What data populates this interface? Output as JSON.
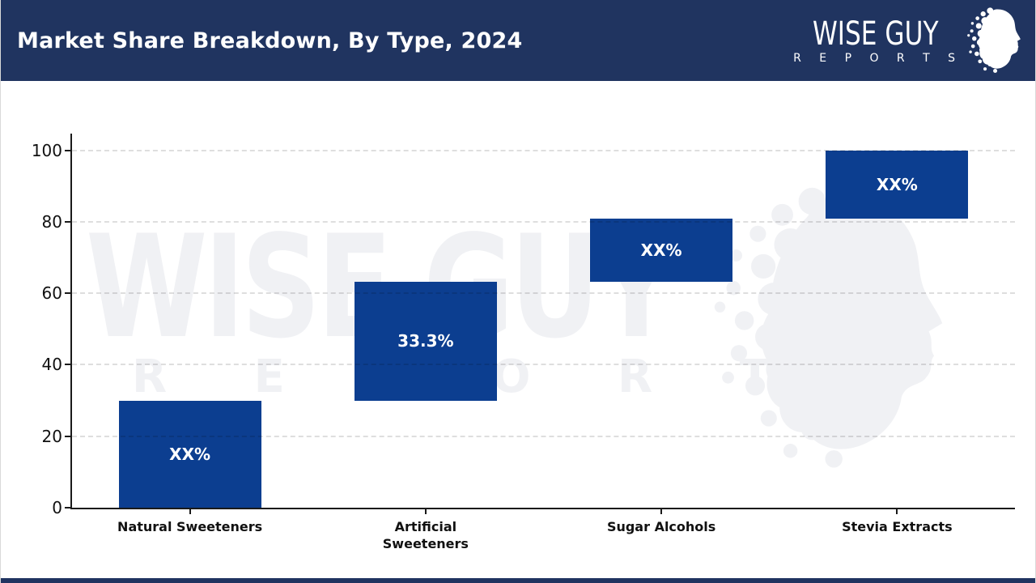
{
  "header": {
    "title": "Market Share Breakdown, By Type, 2024",
    "logo_line1": "WISE GUY",
    "logo_line2": "R E P O R T S"
  },
  "watermark": {
    "line1": "WISE GUY",
    "line2": "R E P O R T S"
  },
  "colors": {
    "header_bg": "#203460",
    "footer_bg": "#203460",
    "bar": "#0c3e90",
    "bar_label": "#ffffff",
    "watermark": "#f0f1f4",
    "axis": "#1a1a1a"
  },
  "icons": {
    "logo_face": "wiseguy-dotted-face-icon"
  },
  "chart_data": {
    "type": "bar",
    "variant": "waterfall",
    "title": "Market Share Breakdown, By Type, 2024",
    "categories": [
      "Natural Sweeteners",
      "Artificial Sweeteners",
      "Sugar Alcohols",
      "Stevia Extracts"
    ],
    "categories_display": [
      [
        "Natural Sweeteners"
      ],
      [
        "Artificial",
        "Sweeteners"
      ],
      [
        "Sugar Alcohols"
      ],
      [
        "Stevia Extracts"
      ]
    ],
    "segments": [
      {
        "category": "Natural Sweeteners",
        "start": 0,
        "end": 30,
        "label": "XX%"
      },
      {
        "category": "Artificial Sweeteners",
        "start": 30,
        "end": 63.3,
        "label": "33.3%"
      },
      {
        "category": "Sugar Alcohols",
        "start": 63.3,
        "end": 81,
        "label": "XX%"
      },
      {
        "category": "Stevia Extracts",
        "start": 81,
        "end": 100,
        "label": "XX%"
      }
    ],
    "yticks": [
      0,
      20,
      40,
      60,
      80,
      100
    ],
    "ylim": [
      0,
      104.7
    ],
    "xlabel": "",
    "ylabel": "",
    "grid": "horizontal-dashed-over-bars",
    "legend": false,
    "bar_color": "#0c3e90",
    "bar_label_color": "#ffffff"
  }
}
